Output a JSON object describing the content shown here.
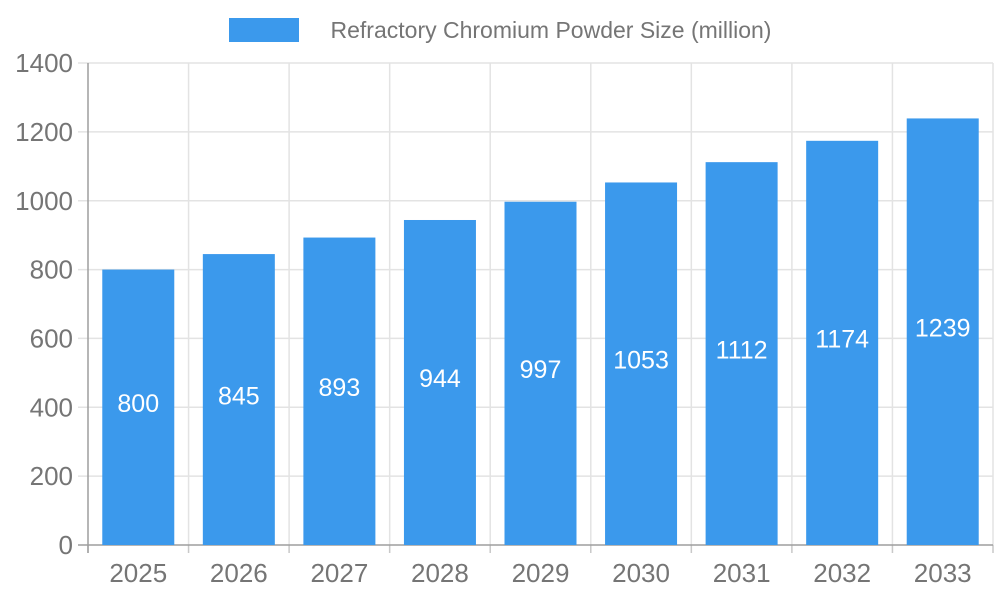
{
  "legend": {
    "label": "Refractory Chromium Powder Size (million)"
  },
  "chart_data": {
    "type": "bar",
    "title": "Refractory Chromium Powder Size (million)",
    "categories": [
      "2025",
      "2026",
      "2027",
      "2028",
      "2029",
      "2030",
      "2031",
      "2032",
      "2033"
    ],
    "values": [
      800,
      845,
      893,
      944,
      997,
      1053,
      1112,
      1174,
      1239
    ],
    "xlabel": "",
    "ylabel": "",
    "ylim": [
      0,
      1400
    ],
    "ytick_step": 200,
    "ytick_labels": [
      "0",
      "200",
      "400",
      "600",
      "800",
      "1000",
      "1200",
      "1400"
    ],
    "grid": true,
    "legend_position": "top",
    "value_labels": "inside-center",
    "colors": {
      "bar": "#3b99ec",
      "grid": "#e3e3e3",
      "axis": "#9e9e9e",
      "tick": "#c9c9c9",
      "tick_text": "#757575",
      "value_label_text": "#ffffff",
      "background": "#ffffff"
    }
  }
}
